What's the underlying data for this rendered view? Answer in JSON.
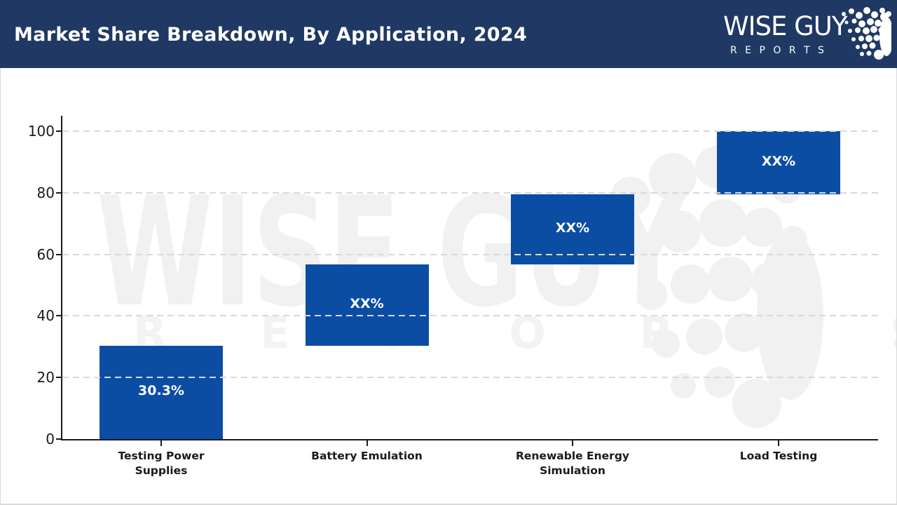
{
  "header": {
    "title": "Market Share Breakdown, By Application, 2024",
    "background_color": "#1f3864",
    "logo": {
      "line1": "WISE GUY",
      "line2": "R E P O R T S"
    }
  },
  "watermark": {
    "line1": "WISE GUY",
    "line2": "R E P O R T S"
  },
  "chart_data": {
    "type": "bar",
    "subtype": "waterfall",
    "title": "Market Share Breakdown, By Application, 2024",
    "xlabel": "",
    "ylabel": "",
    "ylim": [
      0,
      105
    ],
    "y_ticks": [
      0,
      20,
      40,
      60,
      80,
      100
    ],
    "grid": "dashed horizontal",
    "legend": "none",
    "bar_color": "#0b4da2",
    "grid_color": "#d9d9d9",
    "categories": [
      [
        "Testing Power",
        "Supplies"
      ],
      [
        "Battery Emulation"
      ],
      [
        "Renewable Energy",
        "Simulation"
      ],
      [
        "Load Testing"
      ]
    ],
    "bars": [
      {
        "category": "Testing Power Supplies",
        "start": 0,
        "end": 30.3,
        "value_estimate": 30.3,
        "label": "30.3%"
      },
      {
        "category": "Battery Emulation",
        "start": 30.3,
        "end": 56.8,
        "value_estimate": 26.5,
        "label": "XX%"
      },
      {
        "category": "Renewable Energy Simulation",
        "start": 56.8,
        "end": 79.5,
        "value_estimate": 22.7,
        "label": "XX%"
      },
      {
        "category": "Load Testing",
        "start": 79.5,
        "end": 100,
        "value_estimate": 20.5,
        "label": "XX%"
      }
    ]
  }
}
